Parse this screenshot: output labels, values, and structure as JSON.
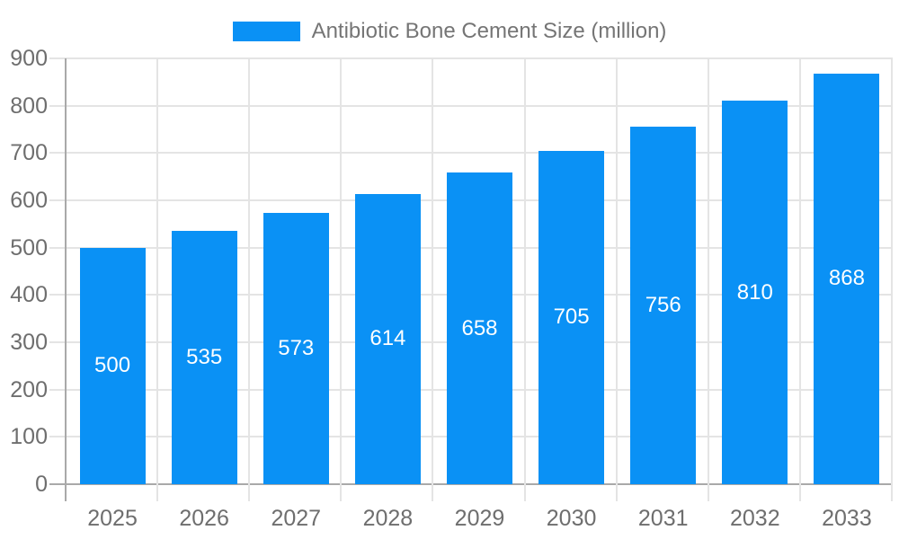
{
  "chart_data": {
    "type": "bar",
    "title": "Antibiotic Bone Cement Size (million)",
    "legend": "Antibiotic Bone Cement Size (million)",
    "legend_position": "top-center",
    "categories": [
      "2025",
      "2026",
      "2027",
      "2028",
      "2029",
      "2030",
      "2031",
      "2032",
      "2033"
    ],
    "values": [
      500,
      535,
      573,
      614,
      658,
      705,
      756,
      810,
      868
    ],
    "xlabel": "",
    "ylabel": "",
    "ylim": [
      0,
      900
    ],
    "ytick_step": 100,
    "grid": true,
    "value_labels": "inside-center",
    "colors": {
      "bar": "#0A91F5",
      "value_label": "#ffffff",
      "axis_line": "#a9a9a9",
      "gridline": "#e4e4e4",
      "tick_label": "#6e6e6e",
      "legend_text": "#757575",
      "background": "#ffffff"
    }
  }
}
